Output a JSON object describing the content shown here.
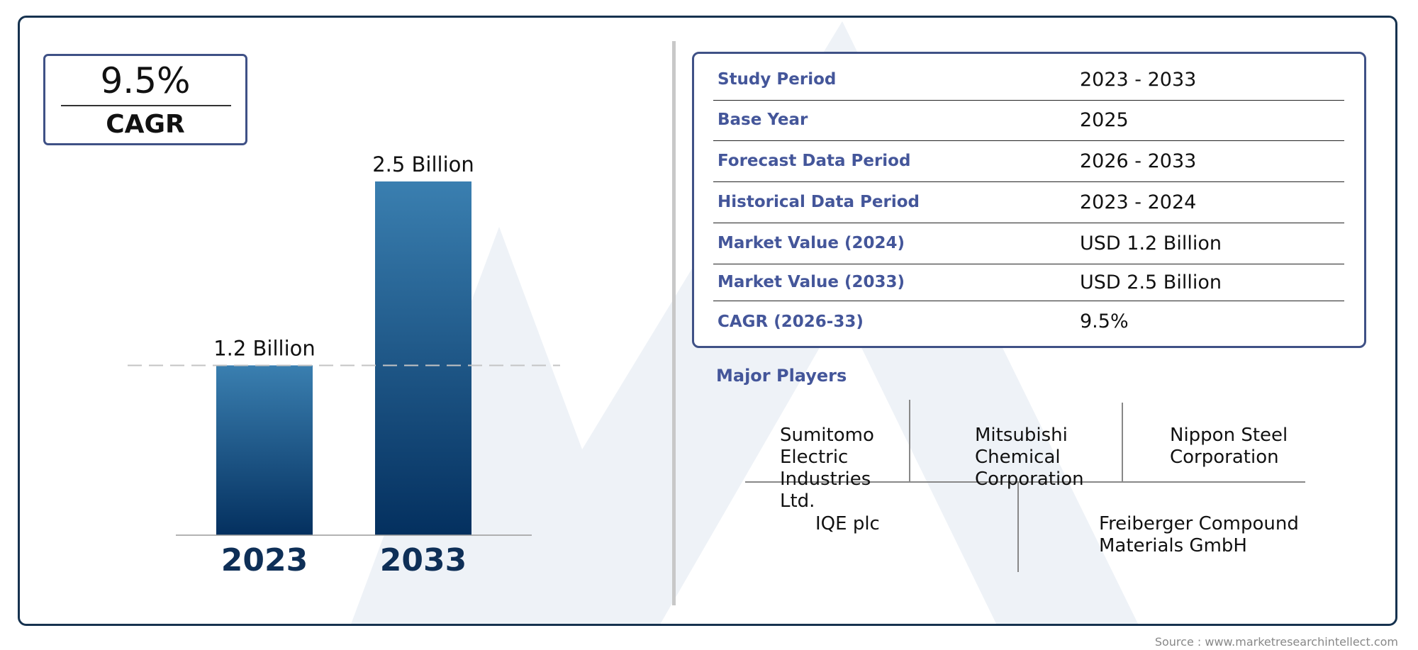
{
  "cagr_box": {
    "value": "9.5%",
    "label": "CAGR"
  },
  "chart_data": {
    "type": "bar",
    "categories": [
      "2023",
      "2033"
    ],
    "values": [
      1.2,
      2.5
    ],
    "data_labels": [
      "1.2 Billion",
      "2.5 Billion"
    ],
    "ylim": [
      0,
      2.5
    ],
    "reference_line_value": 1.2,
    "bar_gradient": [
      "#3a7fb0",
      "#04305f"
    ],
    "category_color": "#0e2f57"
  },
  "info_table": {
    "rows": [
      {
        "label": "Study Period",
        "value": "2023 - 2033"
      },
      {
        "label": "Base Year",
        "value": "2025"
      },
      {
        "label": "Forecast Data Period",
        "value": "2026 - 2033"
      },
      {
        "label": "Historical Data Period",
        "value": "2023 - 2024"
      },
      {
        "label": "Market Value (2024)",
        "value": "USD 1.2 Billion"
      },
      {
        "label": "Market Value (2033)",
        "value": "USD 2.5 Billion"
      },
      {
        "label": "CAGR (2026-33)",
        "value": "9.5%"
      }
    ]
  },
  "major_players": {
    "title": "Major Players",
    "players": [
      "Sumitomo Electric Industries Ltd.",
      "Mitsubishi Chemical Corporation",
      "Nippon Steel Corporation",
      "IQE plc",
      "Freiberger Compound Materials GmbH"
    ]
  },
  "source": "Source : www.marketresearchintellect.com",
  "colors": {
    "frame": "#16324f",
    "accent": "#44569a",
    "box_border": "#3f5186"
  }
}
